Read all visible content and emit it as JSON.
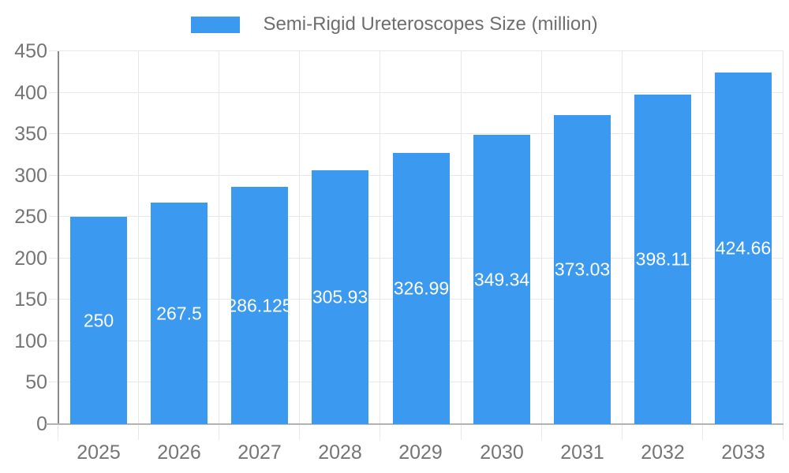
{
  "chart_data": {
    "type": "bar",
    "legend_label": "Semi-Rigid Ureteroscopes Size (million)",
    "categories": [
      "2025",
      "2026",
      "2027",
      "2028",
      "2029",
      "2030",
      "2031",
      "2032",
      "2033"
    ],
    "series": [
      {
        "name": "Semi-Rigid Ureteroscopes Size (million)",
        "values": [
          250,
          267.5,
          286.125,
          305.93,
          326.99,
          349.34,
          373.03,
          398.11,
          424.66
        ]
      }
    ],
    "value_labels": [
      "250",
      "267.5",
      "286.125",
      "305.93",
      "326.99",
      "349.34",
      "373.03",
      "398.11",
      "424.66"
    ],
    "title": "",
    "xlabel": "",
    "ylabel": "",
    "ylim": [
      0,
      450
    ],
    "ytick_step": 50,
    "y_tick_labels": [
      "0",
      "50",
      "100",
      "150",
      "200",
      "250",
      "300",
      "350",
      "400",
      "450"
    ],
    "grid": true,
    "legend_position": "top",
    "colors": {
      "bar": "#3B99EF",
      "axis_text": "#757575",
      "legend_text": "#6e6e6e",
      "value_text": "#ffffff",
      "gridline": "#e8e8e8",
      "baseline": "#b3b3b3",
      "axis_line": "#8a8a8a",
      "background": "#ffffff"
    }
  }
}
